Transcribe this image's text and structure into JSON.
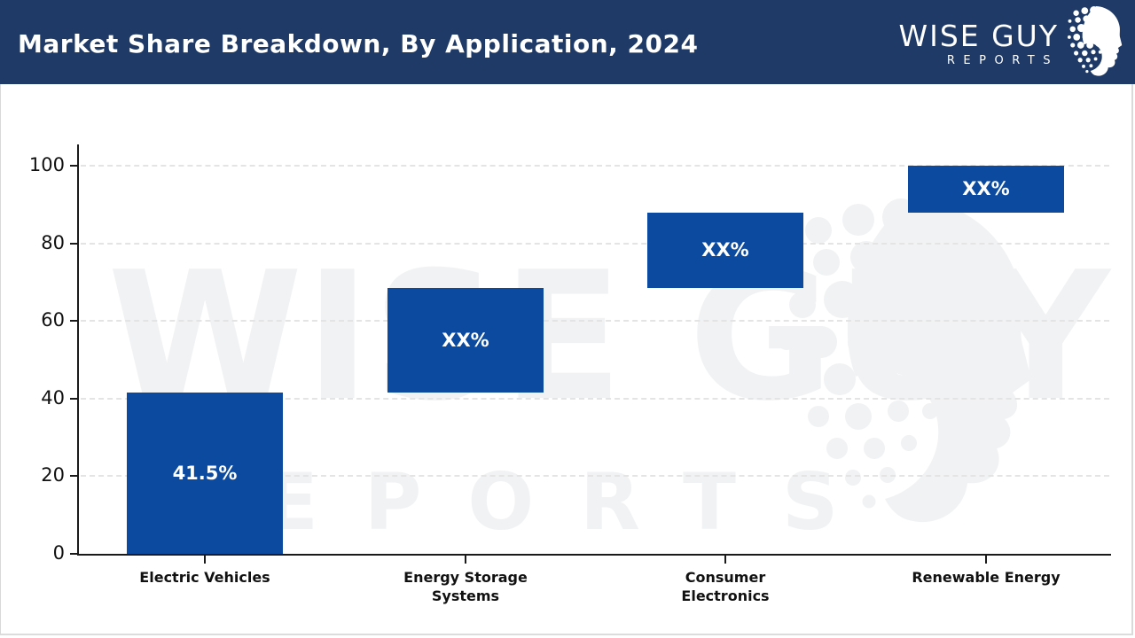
{
  "header": {
    "title": "Market Share Breakdown, By Application, 2024",
    "brand_name": "WISE GUY",
    "brand_sub": "REPORTS"
  },
  "watermark": {
    "line1": "WISE GUY",
    "line2": "REPORTS"
  },
  "chart_data": {
    "type": "bar",
    "variant": "waterfall",
    "title": "Market Share Breakdown, By Application, 2024",
    "categories": [
      "Electric Vehicles",
      "Energy Storage Systems",
      "Consumer Electronics",
      "Renewable Energy"
    ],
    "category_lines": [
      [
        "Electric Vehicles"
      ],
      [
        "Energy Storage",
        "Systems"
      ],
      [
        "Consumer",
        "Electronics"
      ],
      [
        "Renewable Energy"
      ]
    ],
    "series": [
      {
        "name": "Market Share",
        "segments": [
          {
            "category": "Electric Vehicles",
            "start": 0,
            "end": 41.5,
            "label": "41.5%"
          },
          {
            "category": "Energy Storage Systems",
            "start": 41.5,
            "end": 68.5,
            "label": "XX%"
          },
          {
            "category": "Consumer Electronics",
            "start": 68.5,
            "end": 88,
            "label": "XX%"
          },
          {
            "category": "Renewable Energy",
            "start": 88,
            "end": 100,
            "label": "XX%"
          }
        ]
      }
    ],
    "xlabel": "",
    "ylabel": "",
    "ylim": [
      0,
      100
    ],
    "yticks": [
      0,
      20,
      40,
      60,
      80,
      100
    ],
    "grid": "horizontal-dashed",
    "legend": "none",
    "colors": {
      "bar": "#0b4a9f",
      "bar_label": "#ffffff",
      "grid": "#e4e4e4",
      "axis": "#1a1a1a",
      "header_bg": "#1f3a66",
      "watermark": "#f1f2f4"
    }
  }
}
